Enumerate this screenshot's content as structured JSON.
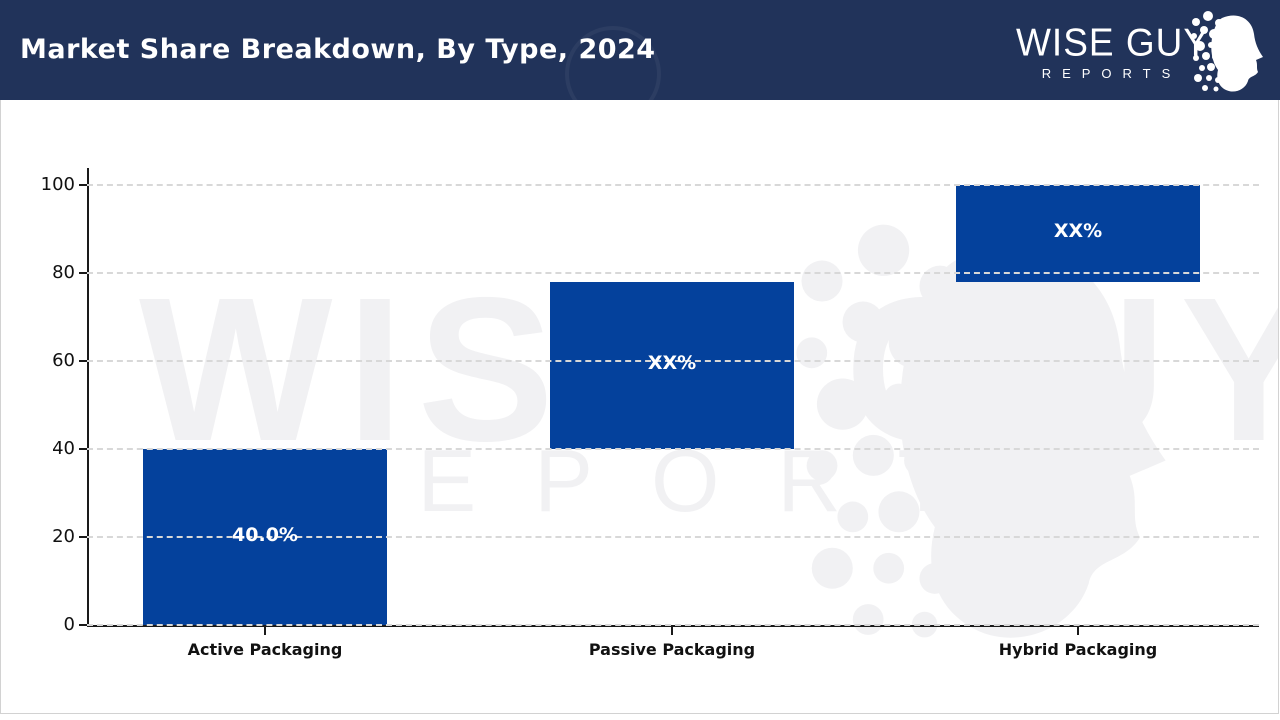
{
  "header": {
    "title": "Market Share Breakdown, By Type, 2024",
    "bg_color": "#21335a",
    "logo": {
      "line1": "WISE GUY",
      "line2": "REPORTS"
    }
  },
  "watermark": {
    "line1": "WISE GUY",
    "line2": "REPORTS"
  },
  "chart_data": {
    "type": "bar",
    "subtype": "floating-segment stacked breakdown (waterfall style)",
    "title": "Market Share Breakdown, By Type, 2024",
    "categories": [
      "Active Packaging",
      "Passive Packaging",
      "Hybrid Packaging"
    ],
    "segments": [
      {
        "category": "Active Packaging",
        "start": 0,
        "end": 40,
        "label": "40.0%"
      },
      {
        "category": "Passive Packaging",
        "start": 40,
        "end": 78,
        "label": "XX%"
      },
      {
        "category": "Hybrid Packaging",
        "start": 78,
        "end": 100,
        "label": "XX%"
      }
    ],
    "yticks": [
      0,
      20,
      40,
      60,
      80,
      100
    ],
    "ylim": [
      0,
      104
    ],
    "xlabel": "",
    "ylabel": "",
    "grid": "horizontal dashed, drawn above bars",
    "legend": "none",
    "bar_color": "#04419c",
    "gridline_color": "#d8d8d8",
    "axis_color": "#1a1a1a",
    "label_color_inside_bar": "#ffffff"
  }
}
